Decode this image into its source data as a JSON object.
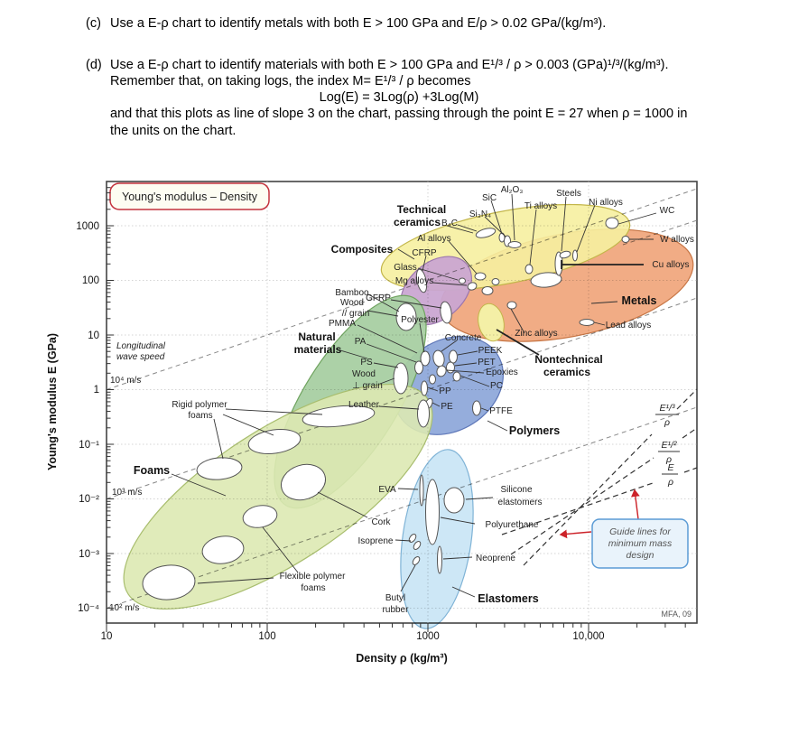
{
  "problem": {
    "c_label": "(c)",
    "c_text": "Use a E-ρ chart to identify metals with both E > 100 GPa and E/ρ > 0.02 GPa/(kg/m³).",
    "d_label": "(d)",
    "d_line1": "Use a E-ρ chart to identify materials with both E > 100 GPa and E¹/³ / ρ > 0.003 (GPa)¹/³/(kg/m³).",
    "d_line2": "Remember that, on taking logs, the index M= E¹/³ / ρ becomes",
    "d_line3": "Log(E) = 3Log(ρ) +3Log(M)",
    "d_line4": "and that this plots as line of slope 3 on the chart, passing through the point E = 27 when ρ = 1000 in",
    "d_line5": "the units on the chart."
  },
  "chart": {
    "title": "Young's modulus – Density",
    "watermark": "MFA, 09",
    "x_axis": {
      "label": "Density ρ (kg/m³)",
      "ticks": [
        "10",
        "100",
        "1000",
        "10,000"
      ]
    },
    "y_axis": {
      "label": "Young's modulus E (GPa)",
      "ticks": [
        "1000",
        "100",
        "10",
        "1",
        "10⁻¹",
        "10⁻²",
        "10⁻³",
        "10⁻⁴"
      ]
    },
    "guide_box": {
      "line1": "Guide lines for",
      "line2": "minimum mass",
      "line3": "design"
    },
    "guideline_labels": {
      "gl3_num": "E¹/³",
      "gl2_num": "E¹/²",
      "gl1_num": "E",
      "den": "ρ"
    },
    "wave": {
      "line1": "Longitudinal",
      "line2": "wave speed",
      "v4": "10⁴ m/s",
      "v3": "10³ m/s",
      "v2": "10² m/s"
    },
    "labels": {
      "technical_1": "Technical",
      "technical_2": "ceramics",
      "composites": "Composites",
      "b4c": "B₄C",
      "al_alloys": "Al alloys",
      "cfrp": "CFRP",
      "glass": "Glass",
      "mg_alloys": "Mg alloys",
      "bamboo": "Bamboo",
      "wood_par_1": "Wood",
      "wood_par_2": "// grain",
      "gfrp": "GFRP",
      "pmma": "PMMA",
      "polyester": "Polyester",
      "natural_1": "Natural",
      "natural_2": "materials",
      "pa": "PA",
      "concrete": "Concrete",
      "peek": "PEEK",
      "pet": "PET",
      "epoxies": "Epoxies",
      "pc": "PC",
      "ps": "PS",
      "wood_perp_1": "Wood",
      "wood_perp_2": "⊥ grain",
      "leather": "Leather",
      "pp": "PP",
      "pe": "PE",
      "ptfe": "PTFE",
      "polymers": "Polymers",
      "zinc": "Zinc alloys",
      "nontech_1": "Nontechnical",
      "nontech_2": "ceramics",
      "metals": "Metals",
      "lead": "Lead alloys",
      "wc": "WC",
      "w_alloys": "W alloys",
      "cu_alloys": "Cu alloys",
      "ti_alloys": "Ti alloys",
      "steels": "Steels",
      "ni_alloys": "Ni alloys",
      "al2o3": "Al₂O₃",
      "sic": "SiC",
      "si3n4": "Si₃N₄",
      "foams": "Foams",
      "rigid_1": "Rigid polymer",
      "rigid_2": "foams",
      "flexible_1": "Flexible polymer",
      "flexible_2": "foams",
      "cork": "Cork",
      "eva": "EVA",
      "isoprene": "Isoprene",
      "butyl_1": "Butyl",
      "butyl_2": "rubber",
      "neoprene": "Neoprene",
      "elastomers": "Elastomers",
      "silicone_1": "Silicone",
      "silicone_2": "elastomers",
      "polyurethane": "Polyurethane"
    },
    "colors": {
      "technical_ceramics": "#F6F0A0",
      "metals": "#F0A87E",
      "composites": "#CAA6D2",
      "polymers": "#8FA9DA",
      "natural": "#A8CFA2",
      "foams": "#DDE9B2",
      "elastomers": "#C8E4F5",
      "nontechnical_ceramics": "#F4EFA6",
      "title_border": "#C4333D",
      "guide_box_border": "#5B9BD5",
      "red_arrow": "#CC2229"
    }
  },
  "chart_data": {
    "type": "bubble",
    "title": "Young's modulus – Density",
    "xlabel": "Density ρ (kg/m³)",
    "ylabel": "Young's modulus E (GPa)",
    "x_scale": "log",
    "y_scale": "log",
    "xlim": [
      10,
      50000
    ],
    "ylim": [
      0.0001,
      1000
    ],
    "families": [
      {
        "name": "Technical ceramics",
        "density_range": [
          1800,
          20000
        ],
        "E_range": [
          80,
          1500
        ]
      },
      {
        "name": "Metals",
        "density_range": [
          1700,
          25000
        ],
        "E_range": [
          5,
          400
        ]
      },
      {
        "name": "Composites",
        "density_range": [
          900,
          2500
        ],
        "E_range": [
          8,
          250
        ]
      },
      {
        "name": "Nontechnical ceramics",
        "density_range": [
          2000,
          3000
        ],
        "E_range": [
          10,
          100
        ]
      },
      {
        "name": "Polymers",
        "density_range": [
          900,
          2200
        ],
        "E_range": [
          0.1,
          10
        ]
      },
      {
        "name": "Natural materials",
        "density_range": [
          400,
          1300
        ],
        "E_range": [
          0.03,
          30
        ]
      },
      {
        "name": "Foams",
        "density_range": [
          11,
          1000
        ],
        "E_range": [
          8e-05,
          1
        ]
      },
      {
        "name": "Elastomers",
        "density_range": [
          850,
          1600
        ],
        "E_range": [
          0.0002,
          0.1
        ]
      }
    ],
    "materials": [
      {
        "name": "WC",
        "density": 15000,
        "E": 700
      },
      {
        "name": "W alloys",
        "density": 17000,
        "E": 400
      },
      {
        "name": "Steels",
        "density": 7800,
        "E": 210
      },
      {
        "name": "Ni alloys",
        "density": 8500,
        "E": 210
      },
      {
        "name": "Cu alloys",
        "density": 8900,
        "E": 130
      },
      {
        "name": "Ti alloys",
        "density": 4500,
        "E": 110
      },
      {
        "name": "Al₂O₃",
        "density": 3900,
        "E": 350
      },
      {
        "name": "SiC",
        "density": 3100,
        "E": 420
      },
      {
        "name": "Si₃N₄",
        "density": 3200,
        "E": 300
      },
      {
        "name": "B₄C",
        "density": 2500,
        "E": 440
      },
      {
        "name": "Al alloys",
        "density": 2700,
        "E": 75
      },
      {
        "name": "Mg alloys",
        "density": 1800,
        "E": 45
      },
      {
        "name": "CFRP",
        "density": 1550,
        "E": 110
      },
      {
        "name": "GFRP",
        "density": 1900,
        "E": 22
      },
      {
        "name": "Glass",
        "density": 2500,
        "E": 70
      },
      {
        "name": "Lead alloys",
        "density": 11000,
        "E": 14
      },
      {
        "name": "Zinc alloys",
        "density": 6500,
        "E": 90
      },
      {
        "name": "Concrete",
        "density": 2400,
        "E": 30
      },
      {
        "name": "PEEK",
        "density": 1300,
        "E": 4
      },
      {
        "name": "PET",
        "density": 1350,
        "E": 3
      },
      {
        "name": "Epoxies",
        "density": 1250,
        "E": 3
      },
      {
        "name": "PC",
        "density": 1200,
        "E": 2.5
      },
      {
        "name": "PA",
        "density": 1100,
        "E": 3
      },
      {
        "name": "PMMA",
        "density": 1190,
        "E": 3
      },
      {
        "name": "Polyester",
        "density": 1350,
        "E": 3.5
      },
      {
        "name": "PS",
        "density": 1050,
        "E": 3
      },
      {
        "name": "PP",
        "density": 900,
        "E": 1.5
      },
      {
        "name": "PE",
        "density": 950,
        "E": 0.8
      },
      {
        "name": "PTFE",
        "density": 2200,
        "E": 0.5
      },
      {
        "name": "Leather",
        "density": 900,
        "E": 0.4
      },
      {
        "name": "Wood // grain",
        "density": 600,
        "E": 10
      },
      {
        "name": "Wood ⊥ grain",
        "density": 600,
        "E": 0.8
      },
      {
        "name": "Bamboo",
        "density": 700,
        "E": 15
      },
      {
        "name": "Cork",
        "density": 180,
        "E": 0.02
      },
      {
        "name": "Rigid polymer foams",
        "density": 100,
        "E": 0.01
      },
      {
        "name": "Flexible polymer foams",
        "density": 40,
        "E": 0.001
      },
      {
        "name": "EVA",
        "density": 950,
        "E": 0.02
      },
      {
        "name": "Polyurethane",
        "density": 1200,
        "E": 0.03
      },
      {
        "name": "Silicone elastomers",
        "density": 1300,
        "E": 0.03
      },
      {
        "name": "Isoprene",
        "density": 930,
        "E": 0.0015
      },
      {
        "name": "Neoprene",
        "density": 1250,
        "E": 0.004
      },
      {
        "name": "Butyl rubber",
        "density": 920,
        "E": 0.0015
      }
    ],
    "wave_speed_contours_m_per_s": [
      100,
      1000,
      10000
    ],
    "guide_lines": [
      "E/ρ",
      "E¹/²/ρ",
      "E¹/³/ρ"
    ],
    "grid": true,
    "annotations": [
      "Guide lines for minimum mass design",
      "Longitudinal wave speed",
      "MFA, 09"
    ]
  }
}
